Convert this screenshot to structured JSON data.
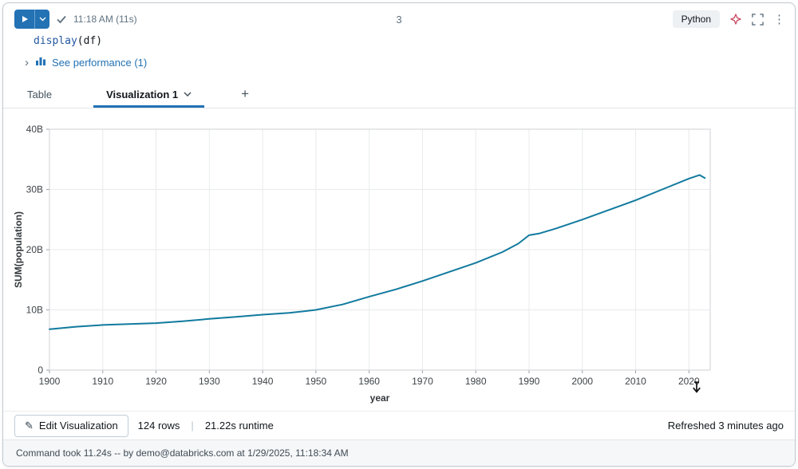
{
  "header": {
    "run_time_label": "11:18 AM (11s)",
    "cell_number": "3",
    "language_label": "Python"
  },
  "code": {
    "function": "display",
    "args": "(df)"
  },
  "performance": {
    "label": "See performance (1)"
  },
  "tabs": {
    "table": "Table",
    "visualization": "Visualization 1",
    "add": "+"
  },
  "icons": {
    "chevron_right": "›",
    "kebab": "⋮",
    "pencil": "✎"
  },
  "colors": {
    "accent": "#2272B4",
    "chart_line": "#117A9E"
  },
  "chart_data": {
    "type": "line",
    "title": "",
    "xlabel": "year",
    "ylabel": "SUM(population)",
    "x": [
      1900,
      1905,
      1910,
      1915,
      1920,
      1925,
      1930,
      1935,
      1940,
      1945,
      1950,
      1955,
      1960,
      1965,
      1970,
      1975,
      1980,
      1985,
      1988,
      1990,
      1992,
      1995,
      2000,
      2005,
      2010,
      2015,
      2020,
      2022,
      2023
    ],
    "values": [
      6.8,
      7.2,
      7.5,
      7.65,
      7.8,
      8.1,
      8.5,
      8.85,
      9.2,
      9.5,
      10.0,
      10.9,
      12.2,
      13.4,
      14.8,
      16.3,
      17.8,
      19.6,
      21.0,
      22.4,
      22.7,
      23.5,
      25.0,
      26.6,
      28.2,
      30.0,
      31.8,
      32.4,
      31.9
    ],
    "value_unit": "B",
    "xlim": [
      1900,
      2024
    ],
    "ylim": [
      0,
      40
    ],
    "xticks": [
      1900,
      1910,
      1920,
      1930,
      1940,
      1950,
      1960,
      1970,
      1980,
      1990,
      2000,
      2010,
      2020
    ],
    "yticks": [
      0,
      10,
      20,
      30,
      40
    ],
    "ytick_labels": [
      "0",
      "10B",
      "20B",
      "30B",
      "40B"
    ],
    "grid": true,
    "legend": "none",
    "line_color": "#117A9E"
  },
  "footer_bar": {
    "edit_button": "Edit Visualization",
    "rows": "124 rows",
    "separator": "|",
    "runtime": "21.22s runtime",
    "refreshed": "Refreshed 3 minutes ago"
  },
  "status_line": "Command took 11.24s -- by demo@databricks.com at 1/29/2025, 11:18:34 AM"
}
